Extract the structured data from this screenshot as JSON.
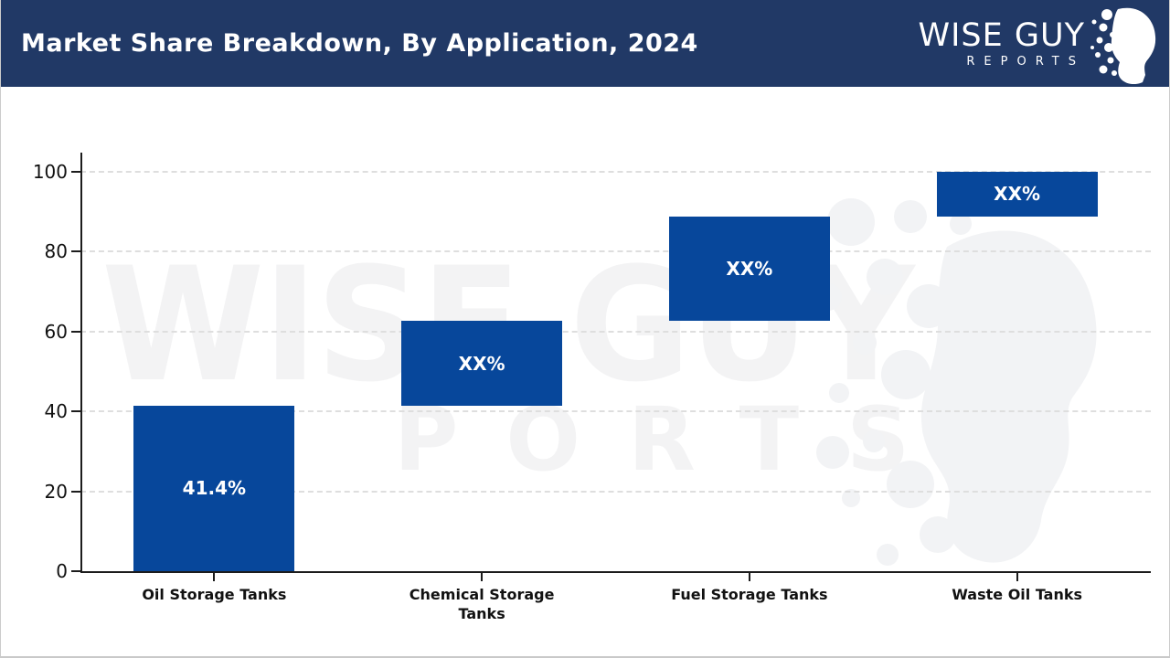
{
  "header": {
    "title": "Market Share Breakdown, By Application, 2024",
    "logo": {
      "primary": "WISE GUY",
      "secondary": "REPORTS"
    }
  },
  "watermark": {
    "primary": "WISE GUY",
    "secondary": "PORTS"
  },
  "chart_data": {
    "type": "bar",
    "subtype": "floating-waterfall",
    "title": "Market Share Breakdown, By Application, 2024",
    "categories": [
      "Oil Storage Tanks",
      "Chemical Storage Tanks",
      "Fuel Storage Tanks",
      "Waste Oil Tanks"
    ],
    "segments": [
      {
        "category": "Oil Storage Tanks",
        "start": 0,
        "end": 41.4,
        "label": "41.4%"
      },
      {
        "category": "Chemical Storage Tanks",
        "start": 41.4,
        "end": 62.6,
        "label": "XX%"
      },
      {
        "category": "Fuel Storage Tanks",
        "start": 62.6,
        "end": 88.6,
        "label": "XX%"
      },
      {
        "category": "Waste Oil Tanks",
        "start": 88.6,
        "end": 100,
        "label": "XX%"
      }
    ],
    "ylim": [
      0,
      100
    ],
    "yticks": [
      0,
      20,
      40,
      60,
      80,
      100
    ],
    "xlabel": "",
    "ylabel": "",
    "grid": "horizontal-dashed",
    "legend": "none",
    "bar_color": "#07479B",
    "bar_label_color": "#FFFFFF"
  },
  "colors": {
    "header_bg": "#213966",
    "page_bg": "#FFFFFF",
    "axis": "#1C1C1C",
    "grid": "#DEDEDE",
    "tick_text": "#111111",
    "watermark": "#F3F3F4",
    "border": "#C9C9C9"
  }
}
